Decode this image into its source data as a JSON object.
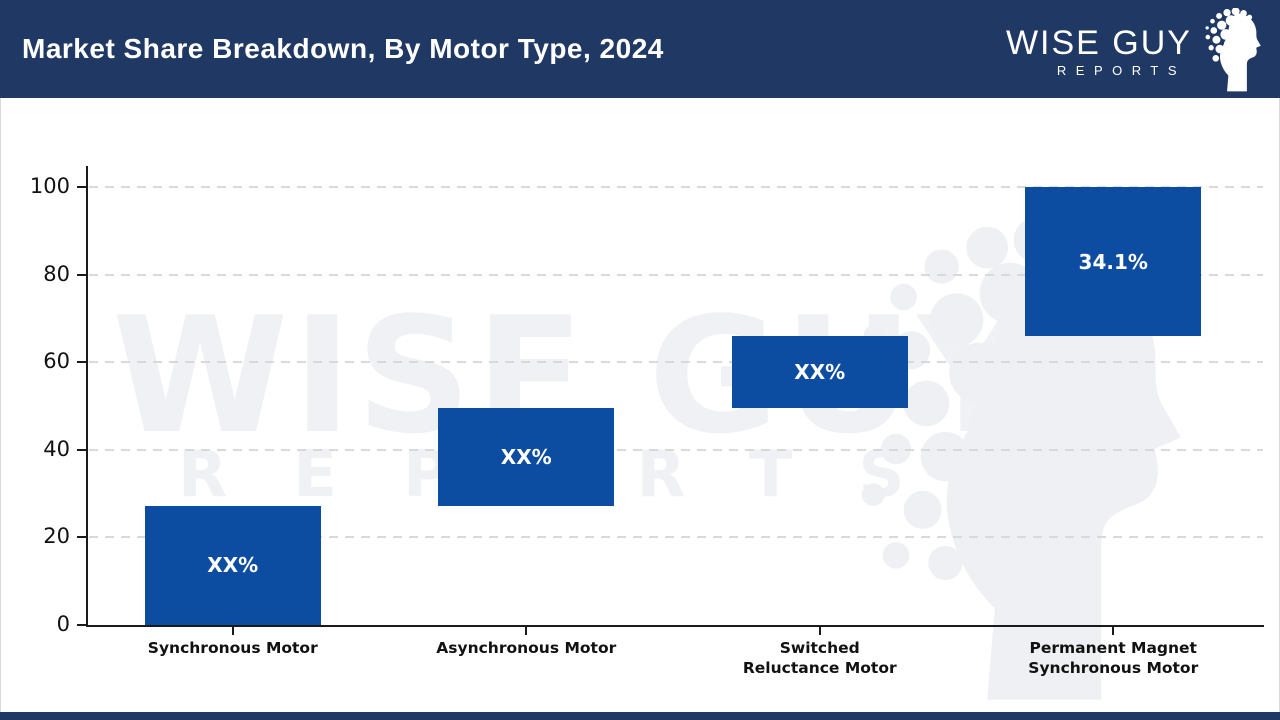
{
  "header": {
    "title": "Market Share Breakdown, By Motor Type, 2024",
    "bg_color": "#1F3864",
    "logo": {
      "line1": "WISE GUY",
      "line2": "REPORTS"
    }
  },
  "watermark": {
    "line1": "WISE GUY",
    "line2": "REPORTS"
  },
  "chart_data": {
    "type": "bar",
    "subtype": "waterfall-floating-bars",
    "title": "Market Share Breakdown, By Motor Type, 2024",
    "categories": [
      [
        "Synchronous Motor"
      ],
      [
        "Asynchronous Motor"
      ],
      [
        "Switched",
        "Reluctance Motor"
      ],
      [
        "Permanent Magnet",
        "Synchronous Motor"
      ]
    ],
    "segments": [
      {
        "label": "XX%",
        "start": 0,
        "end": 27.2
      },
      {
        "label": "XX%",
        "start": 27.2,
        "end": 49.5
      },
      {
        "label": "XX%",
        "start": 49.5,
        "end": 65.9
      },
      {
        "label": "34.1%",
        "start": 65.9,
        "end": 100
      }
    ],
    "yticks": [
      0,
      20,
      40,
      60,
      80,
      100
    ],
    "ylim": [
      0,
      105
    ],
    "xlabel": "",
    "ylabel": "",
    "legend": "none",
    "grid": "horizontal-dashed",
    "bar_color": "#0D4DA1",
    "grid_color": "#D9D9D9",
    "axis_color": "#1A1A1A"
  }
}
